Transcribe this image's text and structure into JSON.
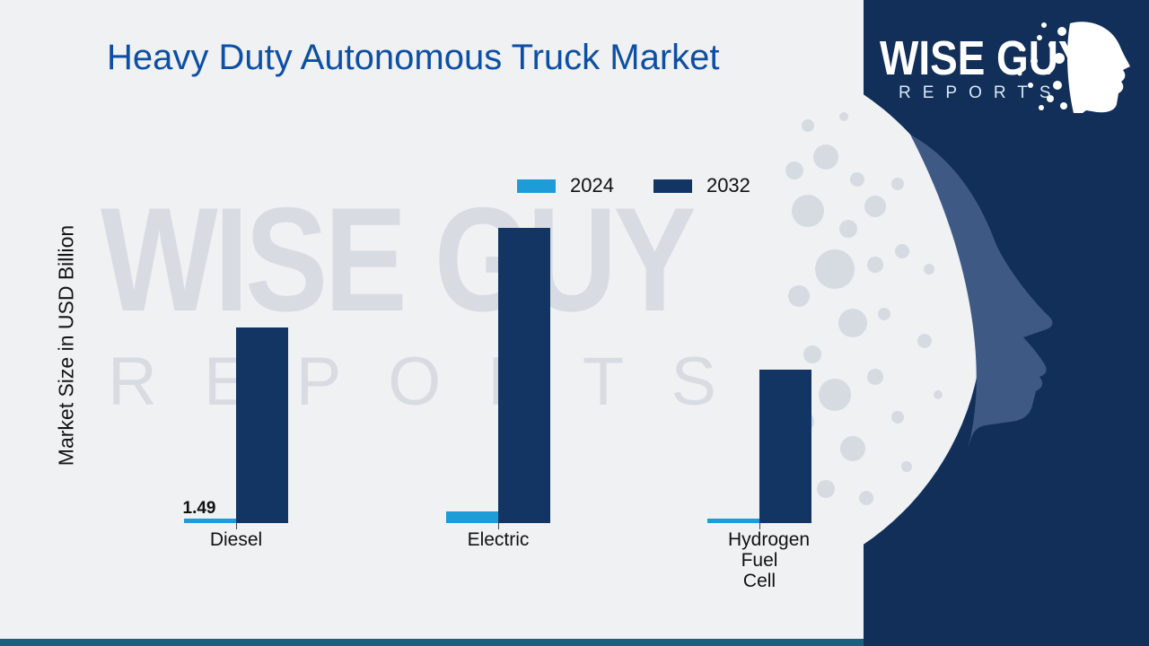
{
  "page": {
    "background_color": "#f0f1f3"
  },
  "header": {
    "title": "Heavy Duty Autonomous Truck Market",
    "title_color": "#0d4fa5"
  },
  "axis": {
    "y_label": "Market Size in USD Billion"
  },
  "legend": {
    "items": [
      "2024",
      "2032"
    ]
  },
  "watermark": {
    "line1": "WISE GUY",
    "line2": "REPORTS"
  },
  "branding": {
    "logo_line1": "WISE GUY",
    "logo_line2": "REPORTS",
    "panel_color": "#112f59",
    "accent_strip_color": "#1b5f80",
    "face_silhouette_color": "#3e5984"
  },
  "chart_data": {
    "type": "bar",
    "title": "Heavy Duty Autonomous Truck Market",
    "xlabel": "",
    "ylabel": "Market Size in USD Billion",
    "categories": [
      "Diesel",
      "Electric",
      "Hydrogen Fuel Cell"
    ],
    "series": [
      {
        "name": "2024",
        "color": "#1d9cd8",
        "values": [
          1.49,
          3.9,
          1.4
        ]
      },
      {
        "name": "2032",
        "color": "#123564",
        "values": [
          65,
          98,
          51
        ]
      }
    ],
    "labeled_values": [
      {
        "category": "Diesel",
        "series": "2024",
        "label": "1.49"
      }
    ],
    "ylim": [
      0,
      105
    ],
    "grid": false,
    "legend_position": "top-center",
    "unit": "USD Billion"
  }
}
